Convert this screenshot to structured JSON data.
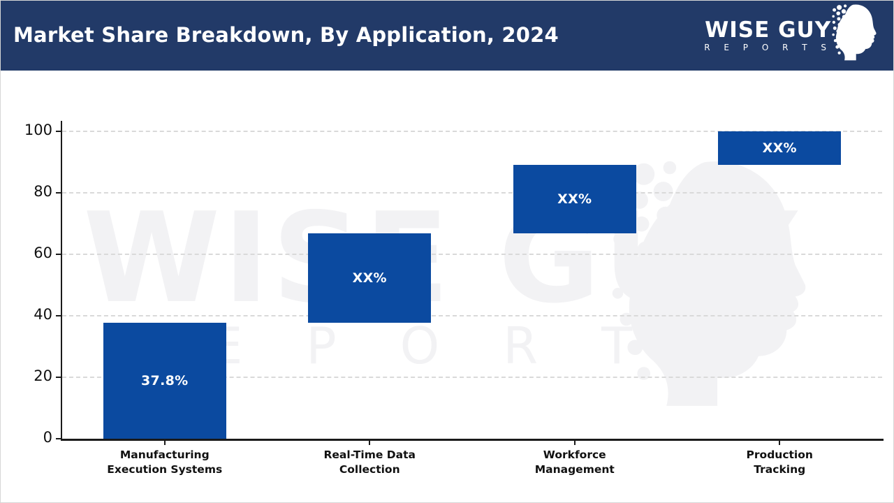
{
  "header": {
    "title": "Market Share Breakdown, By Application, 2024",
    "bg_color": "#223a68",
    "logo": {
      "brand": "WISE GUY",
      "sub": "R E P O R T S"
    }
  },
  "watermark": {
    "line1": "WISE GUY",
    "line2": "R E P O R T S"
  },
  "chart_data": {
    "type": "bar",
    "subtype": "waterfall",
    "title": "Market Share Breakdown, By Application, 2024",
    "categories": [
      [
        "Manufacturing",
        "Execution Systems"
      ],
      [
        "Real-Time Data",
        "Collection"
      ],
      [
        "Workforce",
        "Management"
      ],
      [
        "Production",
        "Tracking"
      ]
    ],
    "segments": [
      {
        "category": "Manufacturing Execution Systems",
        "start": 0,
        "end": 37.8,
        "label": "37.8%"
      },
      {
        "category": "Real-Time Data Collection",
        "start": 37.8,
        "end": 66.8,
        "label": "XX%"
      },
      {
        "category": "Workforce Management",
        "start": 66.8,
        "end": 89.1,
        "label": "XX%"
      },
      {
        "category": "Production Tracking",
        "start": 89.1,
        "end": 100,
        "label": "XX%"
      }
    ],
    "ylim": [
      0,
      100
    ],
    "yticks": [
      0,
      20,
      40,
      60,
      80,
      100
    ],
    "grid": "horizontal-dashed",
    "legend": null,
    "bar_color": "#0b4aa0",
    "bar_label_color": "#ffffff",
    "xlabel": "",
    "ylabel": ""
  }
}
